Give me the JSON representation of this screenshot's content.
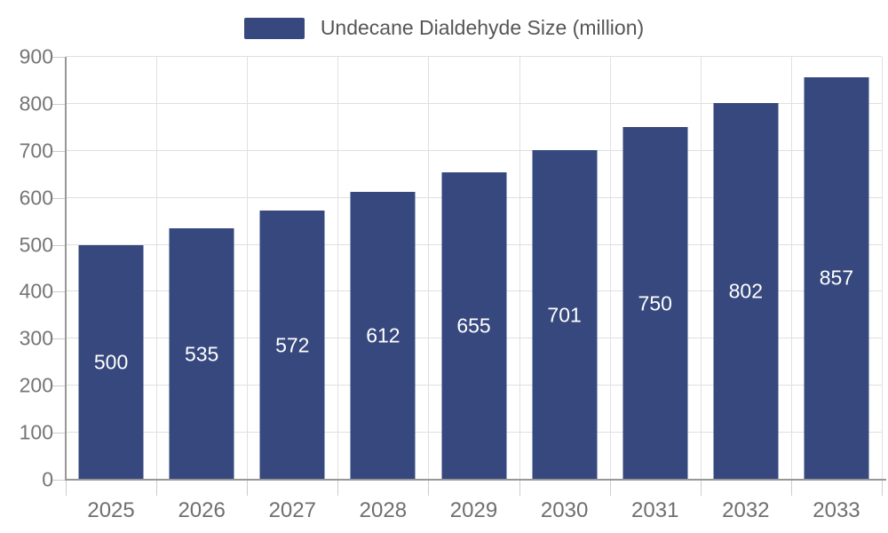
{
  "legend": {
    "label": "Undecane Dialdehyde Size (million)",
    "swatch_color": "#36487D"
  },
  "chart_data": {
    "type": "bar",
    "title": "Undecane Dialdehyde Size (million)",
    "categories": [
      "2025",
      "2026",
      "2027",
      "2028",
      "2029",
      "2030",
      "2031",
      "2032",
      "2033"
    ],
    "values": [
      500,
      535,
      572,
      612,
      655,
      701,
      750,
      802,
      857
    ],
    "series": [
      {
        "name": "Undecane Dialdehyde Size (million)",
        "values": [
          500,
          535,
          572,
          612,
          655,
          701,
          750,
          802,
          857
        ]
      }
    ],
    "xlabel": "",
    "ylabel": "",
    "ylim": [
      0,
      900
    ],
    "ytick_step": 100,
    "yticks": [
      0,
      100,
      200,
      300,
      400,
      500,
      600,
      700,
      800,
      900
    ],
    "grid": true,
    "legend_position": "top-center",
    "value_label_position": "inside-center",
    "bar_color": "#36487D",
    "value_label_color": "#FFFFFF",
    "gridline_color": "#E0E0E0",
    "axis_line_color": "#979797",
    "tick_color": "#CCCCCC",
    "y_label_color": "#757575",
    "x_label_color": "#6F6F6F",
    "legend_text_color": "#565656"
  }
}
